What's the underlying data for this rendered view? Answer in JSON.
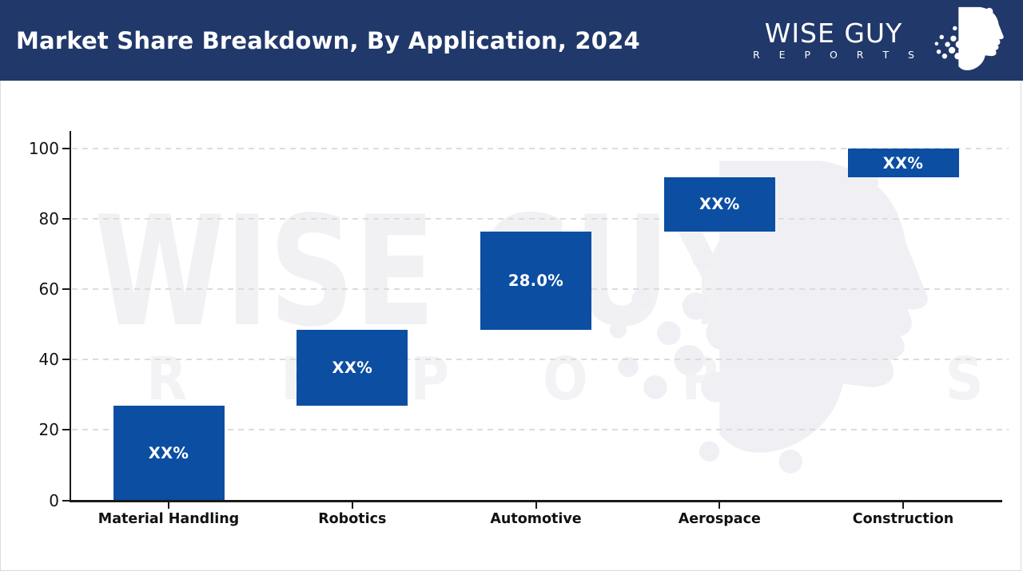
{
  "header": {
    "title": "Market Share Breakdown, By Application, 2024",
    "logo": {
      "line1": "WISE GUY",
      "line2": "R E P O R T S"
    }
  },
  "watermark": {
    "line1": "WISE GUY",
    "line2": "R E P O R T S"
  },
  "colors": {
    "header_bg": "#21386a",
    "bar": "#0b4ea2",
    "bar_label": "#ffffff",
    "grid": "#dcdcdc",
    "axis": "#1a1a1a",
    "watermark": "#f1f1f4"
  },
  "chart_data": {
    "type": "bar",
    "subtype": "waterfall",
    "title": "Market Share Breakdown, By Application, 2024",
    "xlabel": "",
    "ylabel": "",
    "categories": [
      "Material Handling",
      "Robotics",
      "Automotive",
      "Aerospace",
      "Construction"
    ],
    "segments": [
      {
        "category": "Material Handling",
        "start": 0,
        "end": 26.9,
        "value": 26.9,
        "label": "XX%"
      },
      {
        "category": "Robotics",
        "start": 26.9,
        "end": 48.4,
        "value": 21.5,
        "label": "XX%"
      },
      {
        "category": "Automotive",
        "start": 48.4,
        "end": 76.4,
        "value": 28.0,
        "label": "28.0%"
      },
      {
        "category": "Aerospace",
        "start": 76.5,
        "end": 91.8,
        "value": 15.3,
        "label": "XX%"
      },
      {
        "category": "Construction",
        "start": 91.8,
        "end": 100,
        "value": 8.2,
        "label": "XX%"
      }
    ],
    "ylim": [
      0,
      105
    ],
    "yticks": [
      0,
      20,
      40,
      60,
      80,
      100
    ],
    "grid": "horizontal-dashed",
    "legend": "none"
  }
}
